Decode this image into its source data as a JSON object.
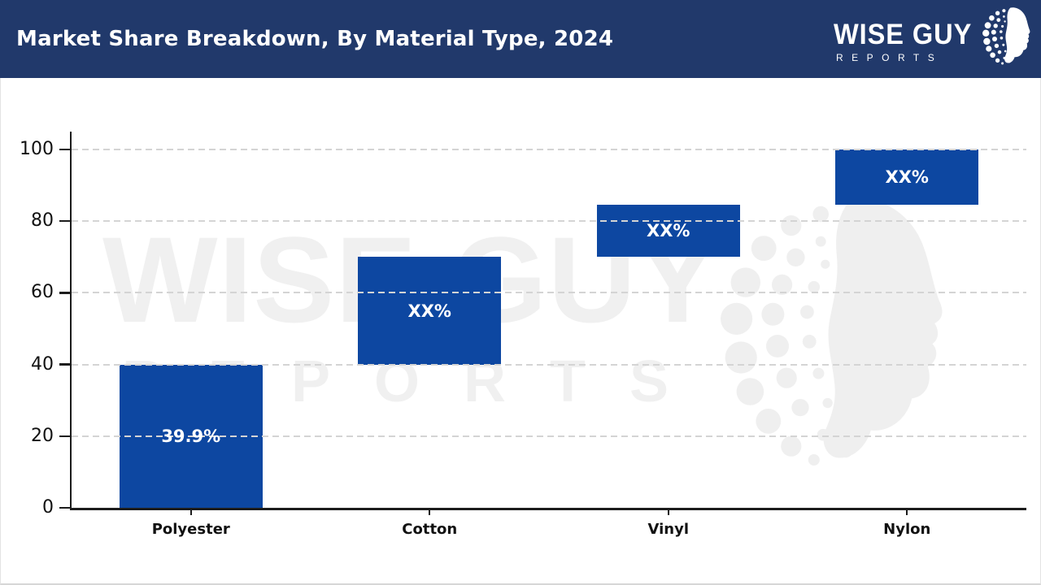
{
  "header": {
    "title": "Market Share Breakdown, By Material Type, 2024",
    "logo_line1": "WISE GUY",
    "logo_line2": "REPORTS"
  },
  "watermark": {
    "line1": "WISE GUY",
    "line2": "REPORTS"
  },
  "colors": {
    "header_bg": "#21396b",
    "bar": "#0d47a1",
    "bar_label": "#ffffff",
    "axis": "#1c1c1c",
    "grid": "#d4d4d4",
    "text": "#111111",
    "watermark": "#f0f0f0",
    "page_bg": "#ffffff"
  },
  "chart_data": {
    "type": "bar",
    "variant": "floating-waterfall",
    "title": "Market Share Breakdown, By Material Type, 2024",
    "categories": [
      "Polyester",
      "Cotton",
      "Vinyl",
      "Nylon"
    ],
    "segments": [
      {
        "category": "Polyester",
        "start": 0,
        "end": 39.9,
        "value_label": "39.9%"
      },
      {
        "category": "Cotton",
        "start": 39.9,
        "end": 70,
        "value_label": "XX%"
      },
      {
        "category": "Vinyl",
        "start": 70,
        "end": 84.5,
        "value_label": "XX%"
      },
      {
        "category": "Nylon",
        "start": 84.5,
        "end": 100,
        "value_label": "XX%"
      }
    ],
    "units": "percent",
    "xlabel": "",
    "ylabel": "",
    "yticks": [
      0,
      20,
      40,
      60,
      80,
      100
    ],
    "ylim": [
      0,
      105
    ],
    "grid": {
      "axis": "y",
      "style": "dashed",
      "over_bars": true
    },
    "legend": false,
    "bar_color": "#0d47a1",
    "label_color": "#ffffff"
  }
}
